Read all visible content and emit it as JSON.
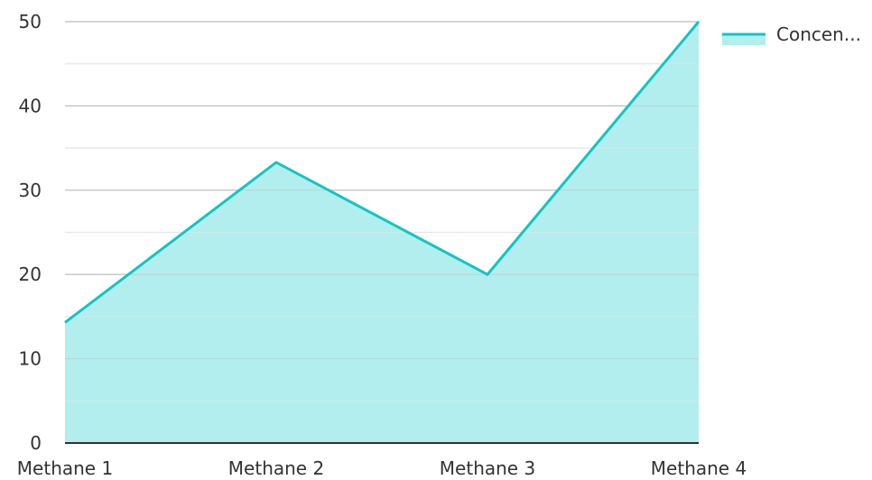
{
  "chart_data": {
    "type": "area",
    "categories": [
      "Methane 1",
      "Methane 2",
      "Methane 3",
      "Methane 4"
    ],
    "series": [
      {
        "name": "Concen...",
        "values": [
          14.3,
          33.3,
          20,
          50
        ]
      }
    ],
    "ylim": [
      0,
      50
    ],
    "yticks": [
      0,
      10,
      20,
      30,
      40,
      50
    ],
    "ytick_labels": [
      "0",
      "10",
      "20",
      "30",
      "40",
      "50"
    ],
    "grid": true,
    "legend_position": "top-right",
    "colors": {
      "line": "#13C4C4",
      "fill": "#B2EEEE",
      "grid_major": "#BDBDBD",
      "grid_minor": "#E6E6E6",
      "axis": "#333333"
    }
  }
}
